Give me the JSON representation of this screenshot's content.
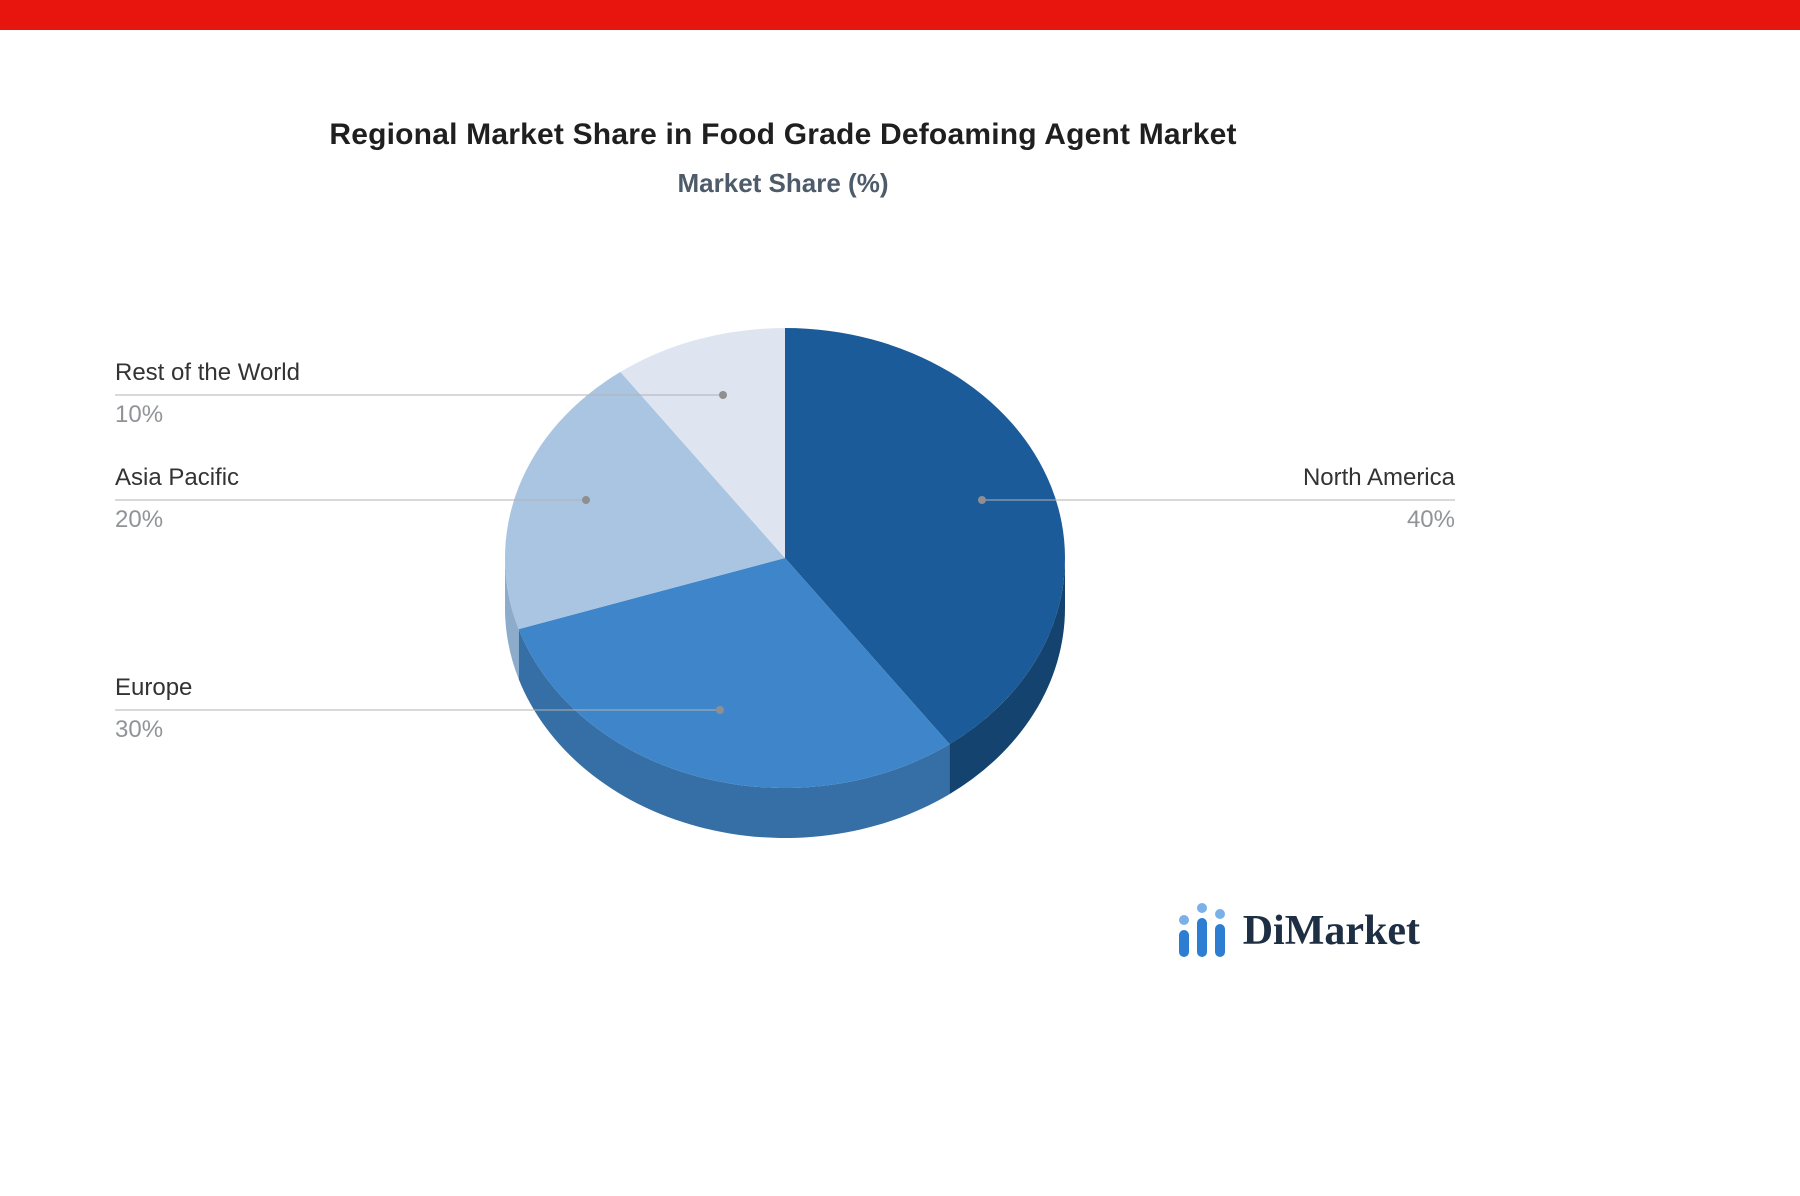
{
  "page": {
    "accent_bar_color": "#e8150e",
    "background": "#ffffff"
  },
  "chart_data": {
    "type": "pie",
    "title": "Regional Market Share in Food Grade Defoaming Agent Market",
    "subtitle": "Market Share (%)",
    "unit": "%",
    "labels": [
      "North America",
      "Europe",
      "Asia Pacific",
      "Rest of the World"
    ],
    "values": [
      40,
      30,
      20,
      10
    ],
    "value_labels": [
      "40%",
      "30%",
      "20%",
      "10%"
    ],
    "colors": [
      "#1b5b99",
      "#3e86c9",
      "#aac5e2",
      "#dee5f0"
    ],
    "side_colors": [
      "#14436f",
      "#356fa5",
      "#8dabcb",
      "#c5cedd"
    ],
    "start_angle_deg": 0,
    "direction": "clockwise",
    "effect": "3d-depth",
    "legend_position": "none",
    "label_style": "callout-lines",
    "line_color": "#b3b3b3",
    "dot_color": "#8f8f8f",
    "label_color": "#333333",
    "value_color": "#919398"
  },
  "branding": {
    "logo_text": "DiMarket",
    "icon": "bar-chart-icon",
    "text_color": "#1e2f44",
    "bar_color": "#2d7ed2",
    "dot_color": "#7ab1e8"
  }
}
